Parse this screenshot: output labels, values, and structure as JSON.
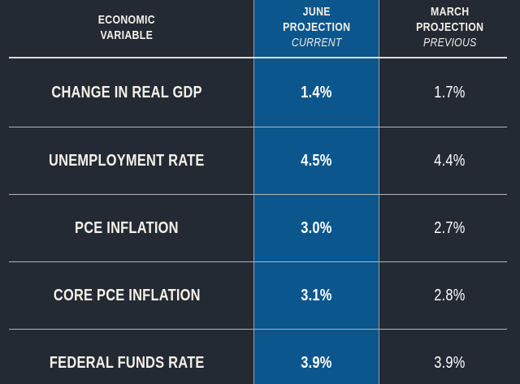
{
  "header": {
    "variable": {
      "line1": "ECONOMIC",
      "line2": "VARIABLE"
    },
    "june": {
      "line1": "JUNE",
      "line2": "PROJECTION",
      "tag": "CURRENT"
    },
    "march": {
      "line1": "MARCH",
      "line2": "PROJECTION",
      "tag": "PREVIOUS"
    }
  },
  "chart_data": {
    "type": "table",
    "columns": [
      "ECONOMIC VARIABLE",
      "JUNE PROJECTION (CURRENT)",
      "MARCH PROJECTION (PREVIOUS)"
    ],
    "rows": [
      [
        "CHANGE IN REAL GDP",
        "1.4%",
        "1.7%"
      ],
      [
        "UNEMPLOYMENT RATE",
        "4.5%",
        "4.4%"
      ],
      [
        "PCE INFLATION",
        "3.0%",
        "2.7%"
      ],
      [
        "CORE PCE INFLATION",
        "3.1%",
        "2.8%"
      ],
      [
        "FEDERAL FUNDS RATE",
        "3.9%",
        "3.9%"
      ]
    ],
    "highlight_column_index": 1,
    "layout": {
      "grid": "horizontal separators between rows, highlighted middle column with vertical borders",
      "legend_position": "none"
    }
  },
  "colors": {
    "background": "#232a34",
    "highlight_column": "#0b568d",
    "row_separator": "#b0b6bb",
    "header_rule": "#dadce0",
    "column_border": "#97a0aa",
    "heading_text": "#f5f1e8",
    "value_text": "#ffffff"
  }
}
